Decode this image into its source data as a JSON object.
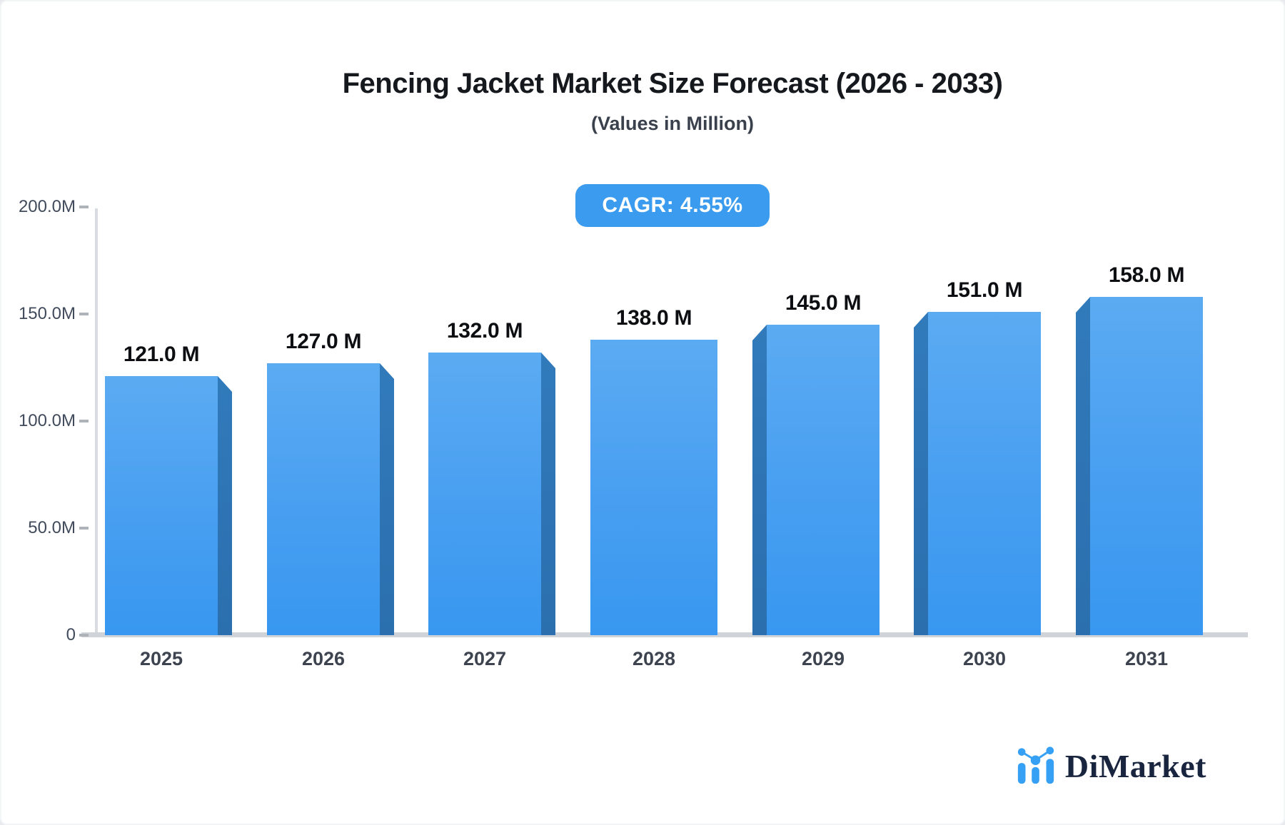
{
  "header": {
    "title": "Fencing Jacket Market Size Forecast (2026 - 2033)",
    "subtitle": "(Values in Million)",
    "badge": "CAGR: 4.55%"
  },
  "chart_data": {
    "type": "bar",
    "title": "Fencing Jacket Market Size Forecast (2026 - 2033)",
    "subtitle": "(Values in Million)",
    "unit": "Million",
    "categories": [
      "2025",
      "2026",
      "2027",
      "2028",
      "2029",
      "2030",
      "2031"
    ],
    "values": [
      121.0,
      127.0,
      132.0,
      138.0,
      145.0,
      151.0,
      158.0
    ],
    "bar_labels": [
      "121.0 M",
      "127.0 M",
      "132.0 M",
      "138.0 M",
      "145.0 M",
      "151.0 M",
      "158.0 M"
    ],
    "y_ticks": [
      "200.0M",
      "150.0M",
      "100.0M",
      "50.0M",
      "0"
    ],
    "y_tick_values": [
      200,
      150,
      100,
      50,
      0
    ],
    "ylim": [
      0,
      200
    ],
    "grid": false,
    "legend": null,
    "annotation": "CAGR: 4.55%"
  },
  "colors": {
    "accent": "#3b9bee",
    "bar_face_top": "#5babf2",
    "bar_face_bottom": "#3897f0",
    "bar_side": "#2d72b2",
    "axis_line": "#d4d7db",
    "title_text": "#15181d",
    "label_text": "#3d4450"
  },
  "logo": {
    "text": "DiMarket",
    "icon": "bar-chart-logo-icon"
  }
}
